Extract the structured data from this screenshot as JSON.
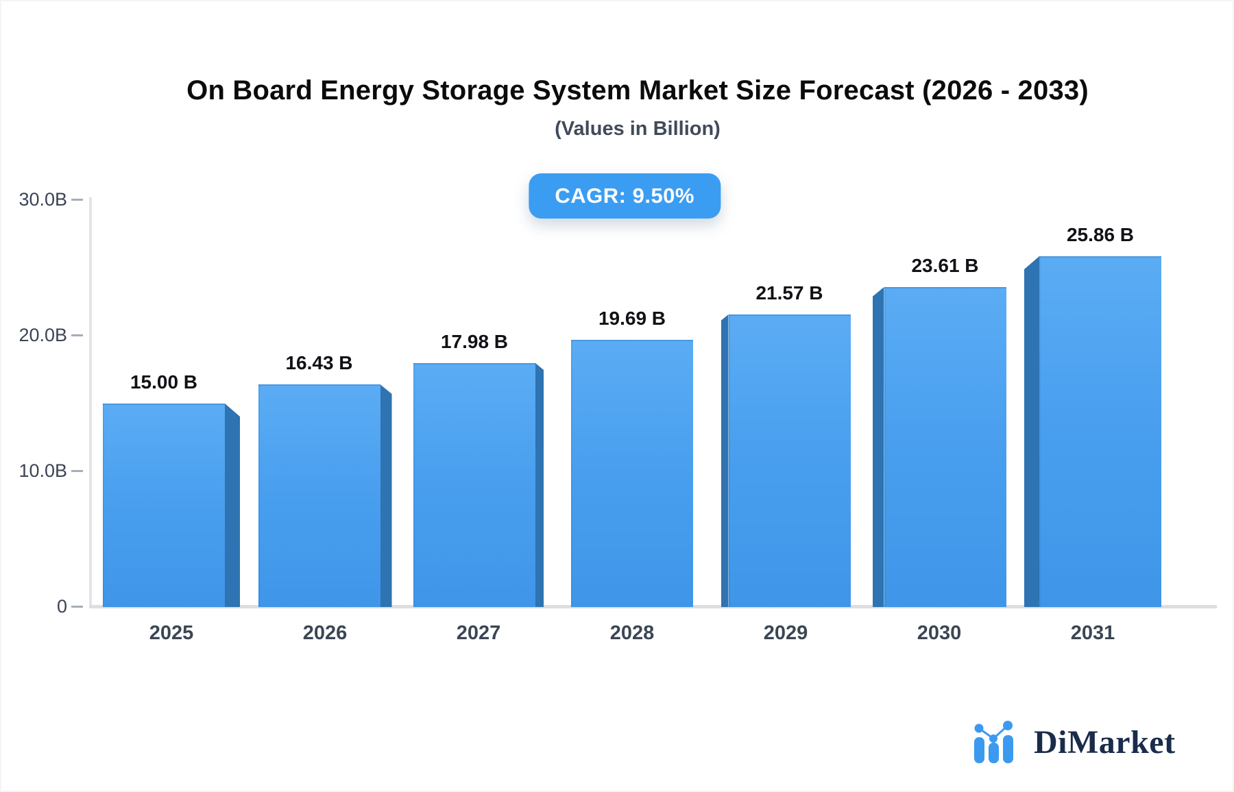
{
  "header": {
    "title": "On Board Energy Storage System Market Size Forecast (2026 - 2033)",
    "subtitle": "(Values in Billion)"
  },
  "badge": {
    "label": "CAGR: 9.50%",
    "background_color": "#3B9DF2",
    "text_color": "#FFFFFF"
  },
  "chart_data": {
    "type": "bar",
    "title": "On Board Energy Storage System Market Size Forecast (2026 - 2033)",
    "subtitle": "(Values in Billion)",
    "categories": [
      "2025",
      "2026",
      "2027",
      "2028",
      "2029",
      "2030",
      "2031"
    ],
    "values": [
      15.0,
      16.43,
      17.98,
      19.69,
      21.57,
      23.61,
      25.86
    ],
    "value_labels": [
      "15.00 B",
      "16.43 B",
      "17.98 B",
      "19.69 B",
      "21.57 B",
      "23.61 B",
      "25.86 B"
    ],
    "xlabel": "",
    "ylabel": "",
    "ylim": [
      0,
      30
    ],
    "yticks": [
      {
        "value": 30,
        "label": "30.0B"
      },
      {
        "value": 20,
        "label": "20.0B"
      },
      {
        "value": 10,
        "label": "10.0B"
      },
      {
        "value": 0,
        "label": "0"
      }
    ],
    "grid": false,
    "legend": null,
    "bar_face_color": "#4AA0EF",
    "bar_side_color": "#2E73B2",
    "style": "3d-perspective-bars"
  },
  "footer": {
    "logo_text": "DiMarket",
    "logo_text_color": "#1A2B4C",
    "logo_icon": "bar-line-chart-icon",
    "logo_icon_color": "#3B9AF0"
  }
}
